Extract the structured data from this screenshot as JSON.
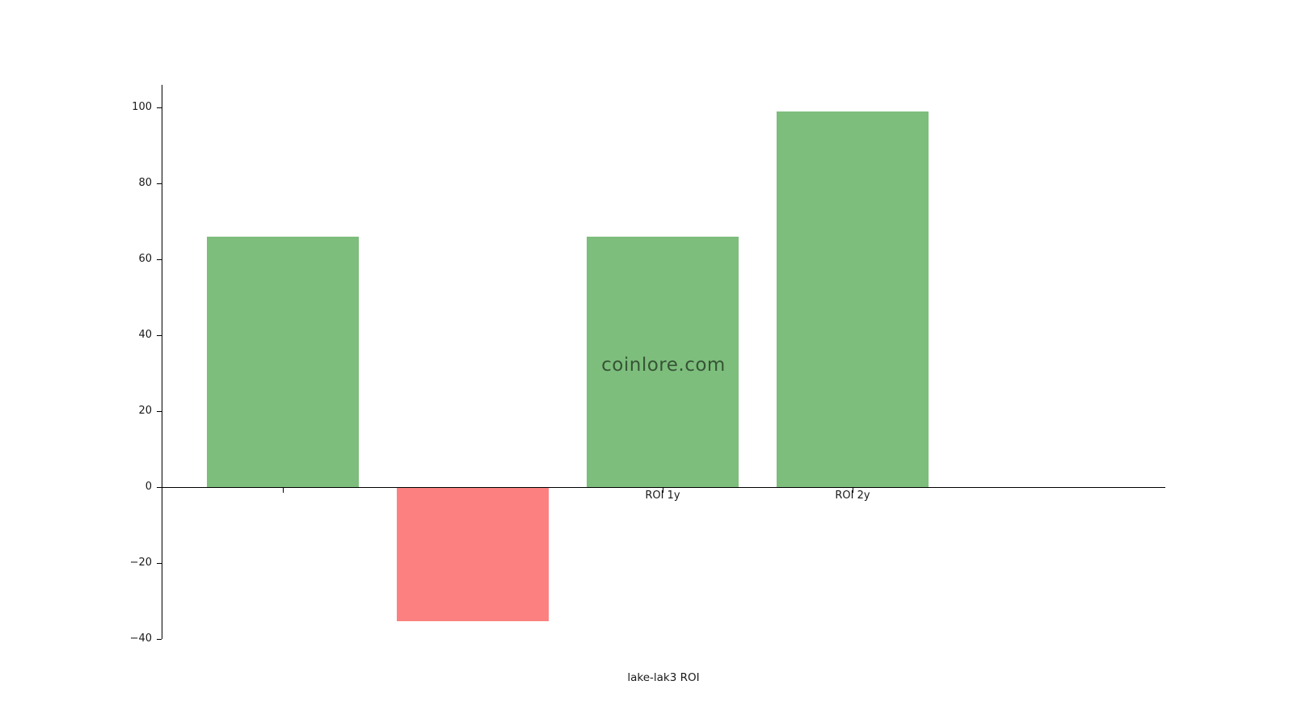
{
  "chart_data": {
    "type": "bar",
    "xlabel": "lake-lak3 ROI",
    "watermark": "coinlore.com",
    "categories": [
      "",
      "",
      "ROI 1y",
      "ROI 2y"
    ],
    "values": [
      66,
      -35,
      66,
      99
    ],
    "bar_colors": [
      "#7dbe7c",
      "#fc8080",
      "#7dbe7c",
      "#7dbe7c"
    ],
    "positive_color": "#7dbe7c",
    "negative_color": "#fc8080",
    "axis_color": "#000000",
    "tick_label_color": "#1a1a1a",
    "watermark_color": "#00000090",
    "background_color": "#ffffff",
    "ylim": [
      -40,
      106
    ],
    "yticks": [
      {
        "value": 100,
        "label": "100"
      },
      {
        "value": 80,
        "label": "80"
      },
      {
        "value": 60,
        "label": "60"
      },
      {
        "value": 40,
        "label": "40"
      },
      {
        "value": 20,
        "label": "20"
      },
      {
        "value": 0,
        "label": "0"
      },
      {
        "value": -20,
        "label": "−20"
      },
      {
        "value": -40,
        "label": "−40"
      }
    ],
    "grid": false,
    "legend": false
  }
}
